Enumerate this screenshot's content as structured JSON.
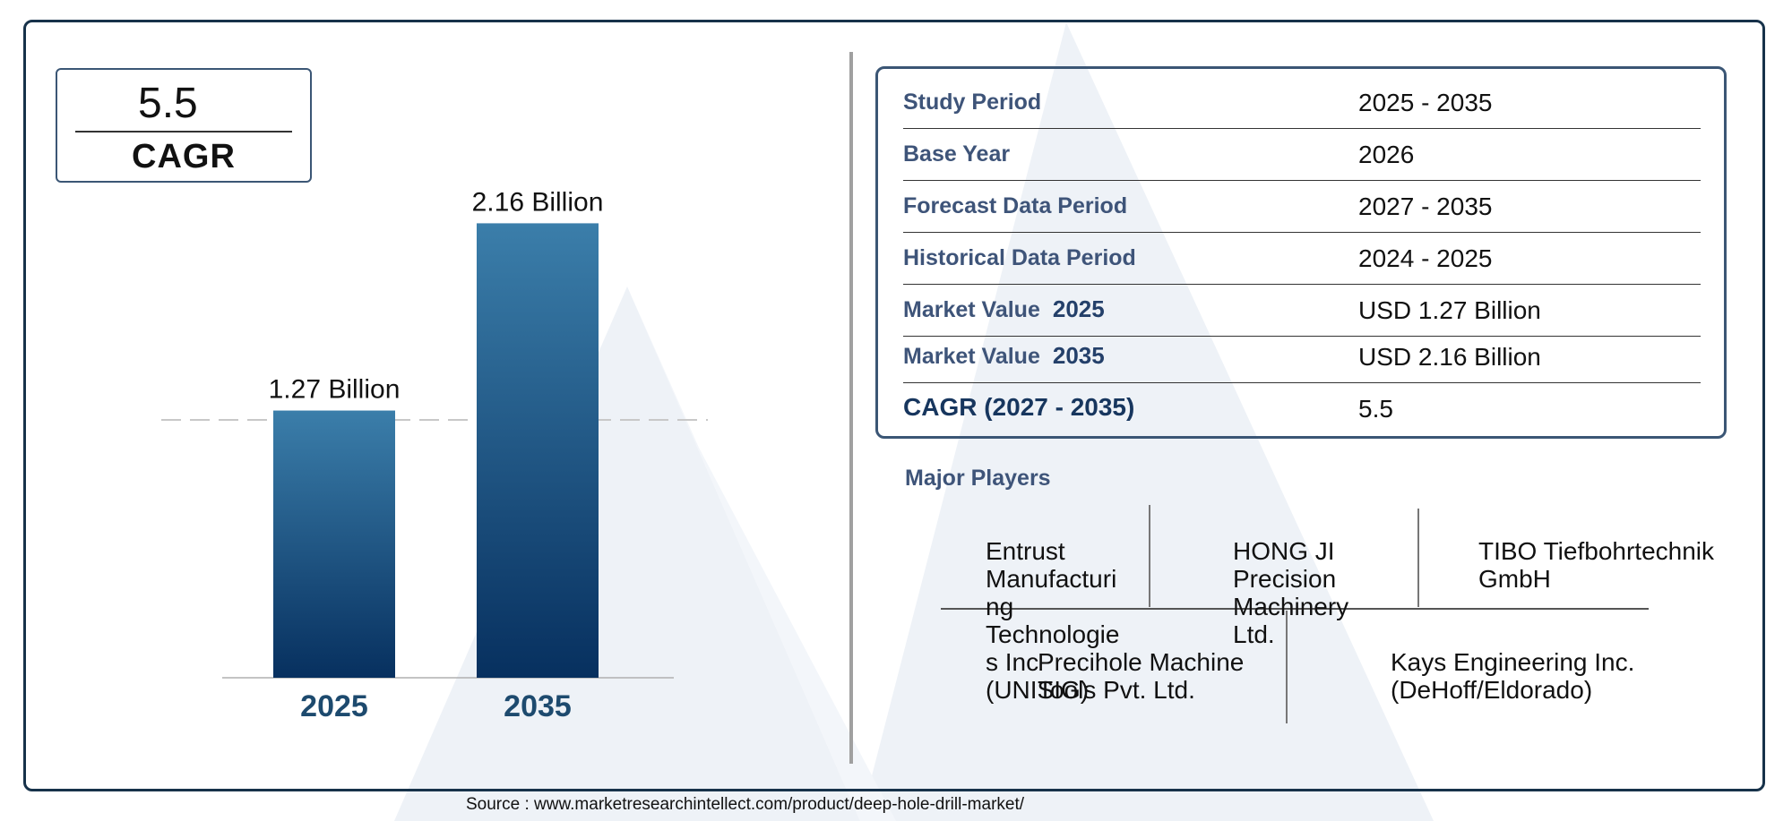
{
  "cagr_card": {
    "value": "5.5",
    "label": "CAGR"
  },
  "chart_data": {
    "type": "bar",
    "categories": [
      "2025",
      "2035"
    ],
    "values": [
      1.27,
      2.16
    ],
    "data_labels": [
      "1.27 Billion",
      "2.16 Billion"
    ],
    "reference_line_at": 1.27,
    "colors": {
      "bar_top": "#3b7eaa",
      "bar_bottom": "#07305f",
      "axis_label": "#1d4a6e"
    }
  },
  "info_table": [
    {
      "label": "Study Period",
      "year": "",
      "value": "2025 - 2035"
    },
    {
      "label": "Base Year",
      "year": "",
      "value": "2026"
    },
    {
      "label": "Forecast Data Period",
      "year": "",
      "value": "2027 - 2035"
    },
    {
      "label": "Historical Data Period",
      "year": "",
      "value": "2024 - 2025"
    },
    {
      "label": "Market Value",
      "year": "2025",
      "value": "USD 1.27 Billion"
    },
    {
      "label": "Market Value",
      "year": "2035",
      "value": "USD 2.16 Billion"
    },
    {
      "label": "CAGR (2027 - 2035)",
      "year": "",
      "value": "5.5"
    }
  ],
  "players": {
    "title": "Major Players",
    "items": [
      "Entrust Manufacturi ng Technologie s Inc (UNISIG)",
      "HONG JI Precision Machinery Ltd.",
      "TIBO Tiefbohrtechnik GmbH",
      "Precihole Machine Tools Pvt. Ltd.",
      "Kays Engineering Inc. (DeHoff/Eldorado)"
    ]
  },
  "source": "Source : www.marketresearchintellect.com/product/deep-hole-drill-market/",
  "colors": {
    "frame": "#17324a",
    "label_text": "#3e5479",
    "watermark": "#edf1f6"
  }
}
